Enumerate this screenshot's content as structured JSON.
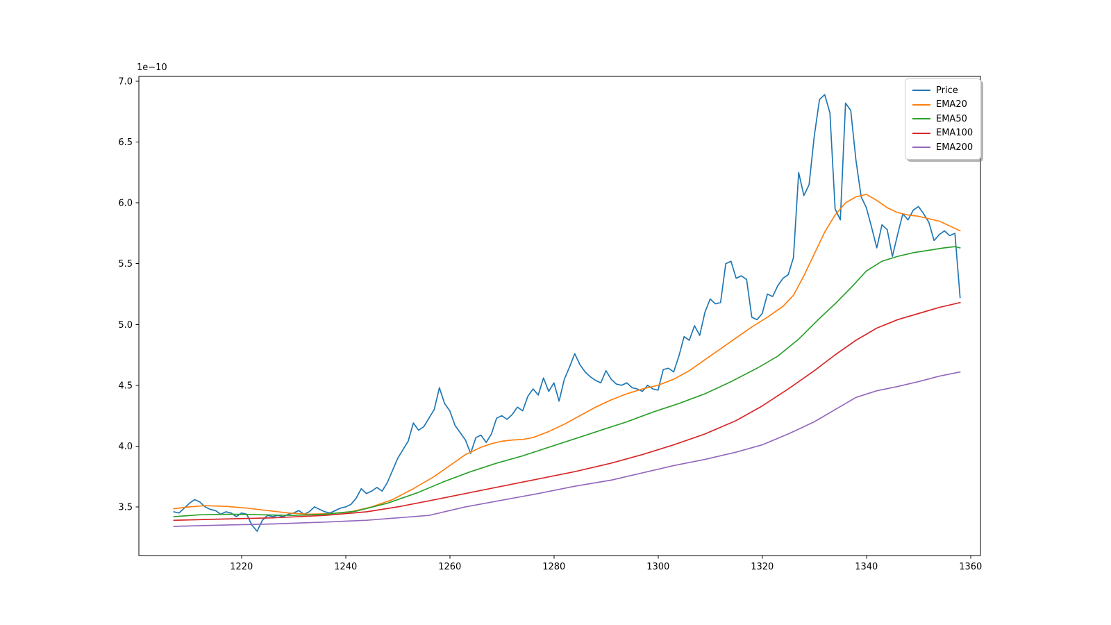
{
  "figure": {
    "background": "#ffffff",
    "text_color": "#000000",
    "spine_color": "#000000"
  },
  "chart_data": {
    "type": "line",
    "title": "",
    "xlabel": "",
    "ylabel": "",
    "offset_text": "1e−10",
    "grid": false,
    "legend_position": "upper right",
    "xlim": [
      1200.3,
      1361.9
    ],
    "ylim": [
      3.1,
      7.04
    ],
    "xticks": [
      1220,
      1240,
      1260,
      1280,
      1300,
      1320,
      1340,
      1360
    ],
    "xtick_labels": [
      "1220",
      "1240",
      "1260",
      "1280",
      "1300",
      "1320",
      "1340",
      "1360"
    ],
    "yticks": [
      7.0,
      6.5,
      6.0,
      5.5,
      5.0,
      4.5,
      4.0,
      3.5
    ],
    "ytick_labels": [
      "7.0",
      "6.5",
      "6.0",
      "5.5",
      "5.0",
      "4.5",
      "4.0",
      "3.5"
    ],
    "series": [
      {
        "name": "Price",
        "color": "#1f77b4",
        "points": [
          [
            1207,
            3.46
          ],
          [
            1208,
            3.45
          ],
          [
            1209,
            3.49
          ],
          [
            1210,
            3.53
          ],
          [
            1211,
            3.56
          ],
          [
            1212,
            3.54
          ],
          [
            1213,
            3.5
          ],
          [
            1214,
            3.48
          ],
          [
            1215,
            3.47
          ],
          [
            1216,
            3.44
          ],
          [
            1217,
            3.46
          ],
          [
            1218,
            3.45
          ],
          [
            1219,
            3.42
          ],
          [
            1220,
            3.45
          ],
          [
            1221,
            3.44
          ],
          [
            1222,
            3.35
          ],
          [
            1223,
            3.3
          ],
          [
            1224,
            3.39
          ],
          [
            1225,
            3.43
          ],
          [
            1226,
            3.42
          ],
          [
            1227,
            3.43
          ],
          [
            1228,
            3.42
          ],
          [
            1229,
            3.44
          ],
          [
            1230,
            3.45
          ],
          [
            1231,
            3.47
          ],
          [
            1232,
            3.44
          ],
          [
            1233,
            3.46
          ],
          [
            1234,
            3.5
          ],
          [
            1235,
            3.48
          ],
          [
            1236,
            3.46
          ],
          [
            1237,
            3.45
          ],
          [
            1238,
            3.47
          ],
          [
            1239,
            3.49
          ],
          [
            1240,
            3.5
          ],
          [
            1241,
            3.52
          ],
          [
            1242,
            3.57
          ],
          [
            1243,
            3.65
          ],
          [
            1244,
            3.61
          ],
          [
            1245,
            3.63
          ],
          [
            1246,
            3.66
          ],
          [
            1247,
            3.63
          ],
          [
            1248,
            3.7
          ],
          [
            1249,
            3.8
          ],
          [
            1250,
            3.9
          ],
          [
            1251,
            3.97
          ],
          [
            1252,
            4.04
          ],
          [
            1253,
            4.19
          ],
          [
            1254,
            4.13
          ],
          [
            1255,
            4.16
          ],
          [
            1256,
            4.23
          ],
          [
            1257,
            4.3
          ],
          [
            1258,
            4.48
          ],
          [
            1259,
            4.35
          ],
          [
            1260,
            4.29
          ],
          [
            1261,
            4.17
          ],
          [
            1262,
            4.11
          ],
          [
            1263,
            4.05
          ],
          [
            1264,
            3.94
          ],
          [
            1265,
            4.07
          ],
          [
            1266,
            4.09
          ],
          [
            1267,
            4.03
          ],
          [
            1268,
            4.1
          ],
          [
            1269,
            4.23
          ],
          [
            1270,
            4.25
          ],
          [
            1271,
            4.22
          ],
          [
            1272,
            4.26
          ],
          [
            1273,
            4.32
          ],
          [
            1274,
            4.29
          ],
          [
            1275,
            4.41
          ],
          [
            1276,
            4.47
          ],
          [
            1277,
            4.42
          ],
          [
            1278,
            4.56
          ],
          [
            1279,
            4.45
          ],
          [
            1280,
            4.52
          ],
          [
            1281,
            4.37
          ],
          [
            1282,
            4.55
          ],
          [
            1283,
            4.65
          ],
          [
            1284,
            4.76
          ],
          [
            1285,
            4.67
          ],
          [
            1286,
            4.61
          ],
          [
            1287,
            4.57
          ],
          [
            1288,
            4.54
          ],
          [
            1289,
            4.52
          ],
          [
            1290,
            4.62
          ],
          [
            1291,
            4.55
          ],
          [
            1292,
            4.51
          ],
          [
            1293,
            4.5
          ],
          [
            1294,
            4.52
          ],
          [
            1295,
            4.48
          ],
          [
            1296,
            4.47
          ],
          [
            1297,
            4.45
          ],
          [
            1298,
            4.5
          ],
          [
            1299,
            4.47
          ],
          [
            1300,
            4.46
          ],
          [
            1301,
            4.63
          ],
          [
            1302,
            4.64
          ],
          [
            1303,
            4.61
          ],
          [
            1304,
            4.74
          ],
          [
            1305,
            4.9
          ],
          [
            1306,
            4.87
          ],
          [
            1307,
            4.99
          ],
          [
            1308,
            4.91
          ],
          [
            1309,
            5.1
          ],
          [
            1310,
            5.21
          ],
          [
            1311,
            5.17
          ],
          [
            1312,
            5.18
          ],
          [
            1313,
            5.5
          ],
          [
            1314,
            5.52
          ],
          [
            1315,
            5.38
          ],
          [
            1316,
            5.4
          ],
          [
            1317,
            5.37
          ],
          [
            1318,
            5.06
          ],
          [
            1319,
            5.04
          ],
          [
            1320,
            5.09
          ],
          [
            1321,
            5.25
          ],
          [
            1322,
            5.23
          ],
          [
            1323,
            5.32
          ],
          [
            1324,
            5.38
          ],
          [
            1325,
            5.41
          ],
          [
            1326,
            5.55
          ],
          [
            1327,
            6.25
          ],
          [
            1328,
            6.06
          ],
          [
            1329,
            6.15
          ],
          [
            1330,
            6.55
          ],
          [
            1331,
            6.85
          ],
          [
            1332,
            6.89
          ],
          [
            1333,
            6.74
          ],
          [
            1334,
            5.95
          ],
          [
            1335,
            5.86
          ],
          [
            1336,
            6.82
          ],
          [
            1337,
            6.76
          ],
          [
            1338,
            6.35
          ],
          [
            1339,
            6.05
          ],
          [
            1340,
            5.96
          ],
          [
            1341,
            5.8
          ],
          [
            1342,
            5.63
          ],
          [
            1343,
            5.82
          ],
          [
            1344,
            5.78
          ],
          [
            1345,
            5.56
          ],
          [
            1346,
            5.74
          ],
          [
            1347,
            5.91
          ],
          [
            1348,
            5.86
          ],
          [
            1349,
            5.94
          ],
          [
            1350,
            5.97
          ],
          [
            1351,
            5.91
          ],
          [
            1352,
            5.84
          ],
          [
            1353,
            5.69
          ],
          [
            1354,
            5.74
          ],
          [
            1355,
            5.77
          ],
          [
            1356,
            5.73
          ],
          [
            1357,
            5.75
          ],
          [
            1358,
            5.22
          ]
        ]
      },
      {
        "name": "EMA20",
        "color": "#ff7f0e",
        "points": [
          [
            1207,
            3.485
          ],
          [
            1210,
            3.5
          ],
          [
            1213,
            3.51
          ],
          [
            1217,
            3.505
          ],
          [
            1221,
            3.49
          ],
          [
            1225,
            3.47
          ],
          [
            1229,
            3.45
          ],
          [
            1233,
            3.44
          ],
          [
            1237,
            3.445
          ],
          [
            1241,
            3.46
          ],
          [
            1245,
            3.5
          ],
          [
            1249,
            3.56
          ],
          [
            1253,
            3.65
          ],
          [
            1257,
            3.75
          ],
          [
            1260,
            3.84
          ],
          [
            1263,
            3.93
          ],
          [
            1266,
            3.99
          ],
          [
            1268,
            4.02
          ],
          [
            1270,
            4.04
          ],
          [
            1272,
            4.05
          ],
          [
            1274,
            4.055
          ],
          [
            1276,
            4.07
          ],
          [
            1279,
            4.12
          ],
          [
            1282,
            4.18
          ],
          [
            1285,
            4.25
          ],
          [
            1288,
            4.32
          ],
          [
            1291,
            4.38
          ],
          [
            1294,
            4.43
          ],
          [
            1297,
            4.47
          ],
          [
            1300,
            4.5
          ],
          [
            1303,
            4.55
          ],
          [
            1306,
            4.62
          ],
          [
            1309,
            4.71
          ],
          [
            1312,
            4.8
          ],
          [
            1315,
            4.89
          ],
          [
            1318,
            4.98
          ],
          [
            1321,
            5.06
          ],
          [
            1324,
            5.15
          ],
          [
            1326,
            5.24
          ],
          [
            1328,
            5.4
          ],
          [
            1330,
            5.58
          ],
          [
            1332,
            5.76
          ],
          [
            1334,
            5.9
          ],
          [
            1336,
            6.0
          ],
          [
            1338,
            6.05
          ],
          [
            1340,
            6.07
          ],
          [
            1342,
            6.02
          ],
          [
            1344,
            5.96
          ],
          [
            1346,
            5.92
          ],
          [
            1348,
            5.9
          ],
          [
            1350,
            5.89
          ],
          [
            1352,
            5.87
          ],
          [
            1354,
            5.85
          ],
          [
            1356,
            5.81
          ],
          [
            1358,
            5.77
          ]
        ]
      },
      {
        "name": "EMA50",
        "color": "#2ca02c",
        "points": [
          [
            1207,
            3.42
          ],
          [
            1212,
            3.435
          ],
          [
            1218,
            3.44
          ],
          [
            1224,
            3.435
          ],
          [
            1230,
            3.43
          ],
          [
            1236,
            3.44
          ],
          [
            1242,
            3.465
          ],
          [
            1248,
            3.53
          ],
          [
            1254,
            3.62
          ],
          [
            1259,
            3.71
          ],
          [
            1264,
            3.79
          ],
          [
            1269,
            3.86
          ],
          [
            1274,
            3.92
          ],
          [
            1279,
            3.99
          ],
          [
            1284,
            4.06
          ],
          [
            1289,
            4.13
          ],
          [
            1294,
            4.2
          ],
          [
            1299,
            4.28
          ],
          [
            1304,
            4.35
          ],
          [
            1309,
            4.43
          ],
          [
            1314,
            4.53
          ],
          [
            1319,
            4.64
          ],
          [
            1323,
            4.74
          ],
          [
            1327,
            4.88
          ],
          [
            1331,
            5.05
          ],
          [
            1334,
            5.17
          ],
          [
            1337,
            5.3
          ],
          [
            1340,
            5.44
          ],
          [
            1343,
            5.52
          ],
          [
            1346,
            5.56
          ],
          [
            1349,
            5.59
          ],
          [
            1352,
            5.61
          ],
          [
            1355,
            5.63
          ],
          [
            1357,
            5.64
          ],
          [
            1358,
            5.63
          ]
        ]
      },
      {
        "name": "EMA100",
        "color": "#d62728",
        "points": [
          [
            1207,
            3.39
          ],
          [
            1216,
            3.4
          ],
          [
            1226,
            3.41
          ],
          [
            1236,
            3.43
          ],
          [
            1244,
            3.46
          ],
          [
            1250,
            3.5
          ],
          [
            1256,
            3.55
          ],
          [
            1263,
            3.61
          ],
          [
            1270,
            3.67
          ],
          [
            1277,
            3.73
          ],
          [
            1284,
            3.79
          ],
          [
            1291,
            3.86
          ],
          [
            1297,
            3.93
          ],
          [
            1303,
            4.01
          ],
          [
            1309,
            4.1
          ],
          [
            1315,
            4.21
          ],
          [
            1320,
            4.33
          ],
          [
            1325,
            4.47
          ],
          [
            1330,
            4.62
          ],
          [
            1334,
            4.75
          ],
          [
            1338,
            4.87
          ],
          [
            1342,
            4.97
          ],
          [
            1346,
            5.04
          ],
          [
            1350,
            5.09
          ],
          [
            1354,
            5.14
          ],
          [
            1358,
            5.18
          ]
        ]
      },
      {
        "name": "EMA200",
        "color": "#9467bd",
        "points": [
          [
            1207,
            3.34
          ],
          [
            1216,
            3.35
          ],
          [
            1226,
            3.36
          ],
          [
            1236,
            3.375
          ],
          [
            1244,
            3.39
          ],
          [
            1250,
            3.41
          ],
          [
            1256,
            3.43
          ],
          [
            1263,
            3.5
          ],
          [
            1270,
            3.555
          ],
          [
            1277,
            3.61
          ],
          [
            1284,
            3.67
          ],
          [
            1291,
            3.72
          ],
          [
            1297,
            3.78
          ],
          [
            1303,
            3.84
          ],
          [
            1309,
            3.89
          ],
          [
            1315,
            3.95
          ],
          [
            1320,
            4.01
          ],
          [
            1325,
            4.1
          ],
          [
            1330,
            4.2
          ],
          [
            1334,
            4.3
          ],
          [
            1338,
            4.4
          ],
          [
            1342,
            4.455
          ],
          [
            1346,
            4.49
          ],
          [
            1350,
            4.53
          ],
          [
            1354,
            4.575
          ],
          [
            1358,
            4.61
          ]
        ]
      }
    ]
  },
  "legend": {
    "items": [
      {
        "label": "Price",
        "color": "#1f77b4"
      },
      {
        "label": "EMA20",
        "color": "#ff7f0e"
      },
      {
        "label": "EMA50",
        "color": "#2ca02c"
      },
      {
        "label": "EMA100",
        "color": "#d62728"
      },
      {
        "label": "EMA200",
        "color": "#9467bd"
      }
    ]
  }
}
